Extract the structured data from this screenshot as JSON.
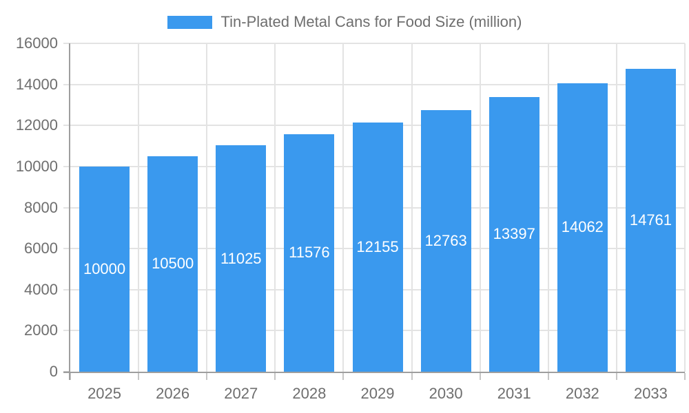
{
  "chart_data": {
    "type": "bar",
    "title": "Tin-Plated Metal Cans for Food Size (million)",
    "legend_position": "top",
    "categories": [
      "2025",
      "2026",
      "2027",
      "2028",
      "2029",
      "2030",
      "2031",
      "2032",
      "2033"
    ],
    "values": [
      10000,
      10500,
      11025,
      11576,
      12155,
      12763,
      13397,
      14062,
      14761
    ],
    "xlabel": "",
    "ylabel": "",
    "ylim": [
      0,
      16000
    ],
    "yticks": [
      0,
      2000,
      4000,
      6000,
      8000,
      10000,
      12000,
      14000,
      16000
    ],
    "grid": true,
    "value_labels": "inside-center",
    "colors": {
      "bar": "#3a99ee",
      "grid": "#e3e3e3",
      "axis": "#9e9e9e",
      "tick_mark": "#c6c6c6",
      "tick_text": "#6e6e6e",
      "legend_text": "#6e6e6e",
      "value_label_text": "#ffffff",
      "background": "#ffffff"
    }
  }
}
